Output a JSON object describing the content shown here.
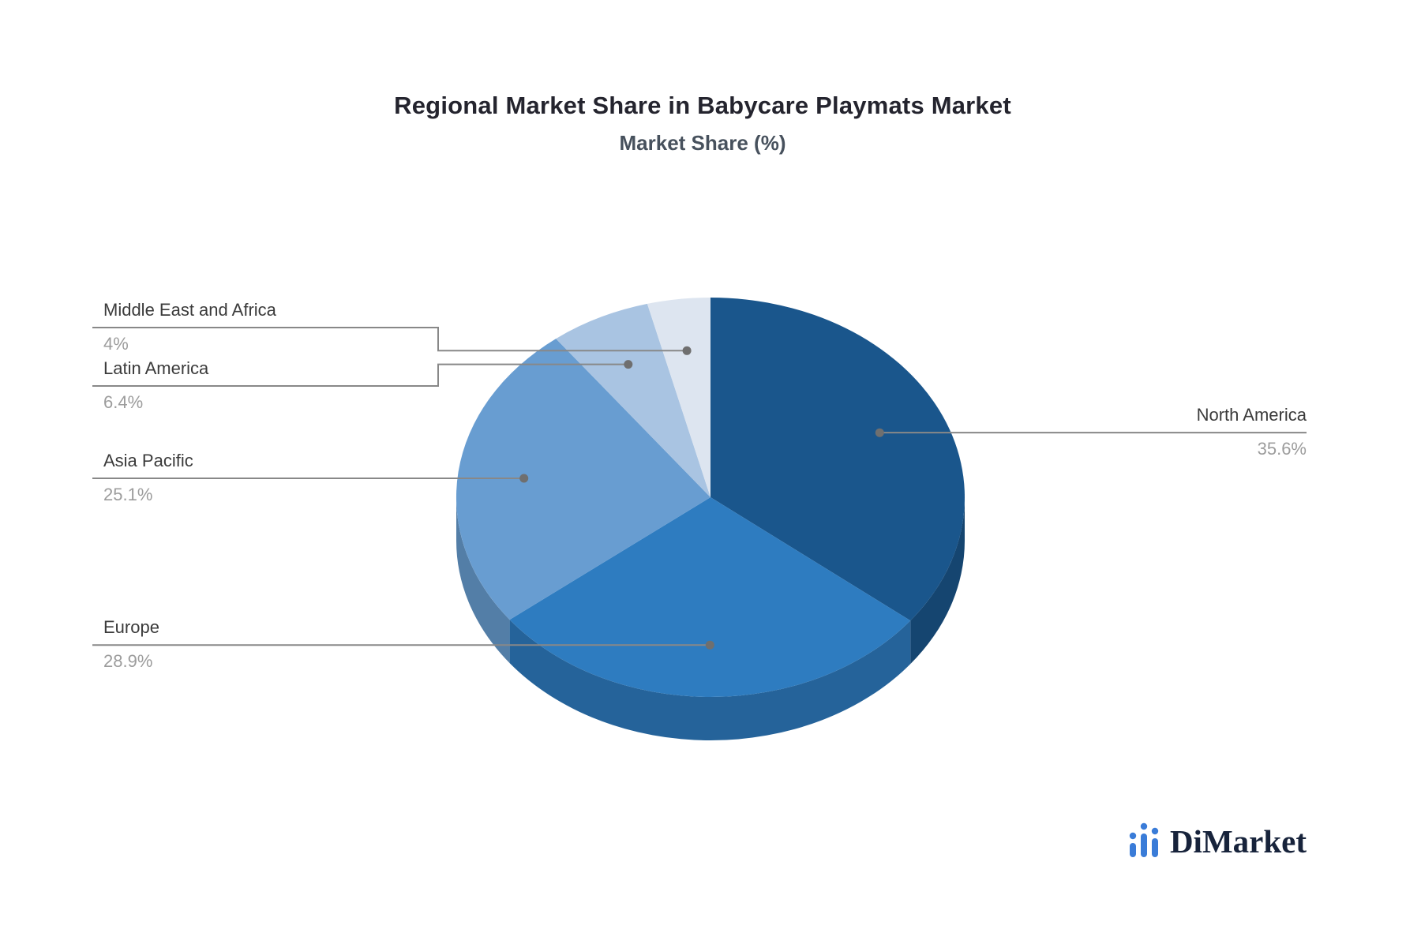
{
  "header": {
    "title": "Regional Market Share in Babycare Playmats Market",
    "subtitle": "Market Share (%)"
  },
  "chart_data": {
    "type": "pie",
    "title": "Regional Market Share in Babycare Playmats Market",
    "subtitle": "Market Share (%)",
    "units": "%",
    "labels": [
      "North America",
      "Europe",
      "Asia Pacific",
      "Latin America",
      "Middle East and Africa"
    ],
    "values": [
      35.6,
      28.9,
      25.1,
      6.4,
      4
    ],
    "value_labels": [
      "35.6%",
      "28.9%",
      "25.1%",
      "6.4%",
      "4%"
    ],
    "colors": [
      "#1a568c",
      "#2e7cc0",
      "#689dd1",
      "#a9c4e2",
      "#dde5f0"
    ],
    "start_angle": "12-o-clock",
    "direction": "clockwise",
    "style": "3d-pie",
    "legend": "none",
    "leader_line_color": "#888888",
    "leader_dot_color": "#6f6f6f",
    "label_text_color": "#3b3b3b",
    "value_text_color": "#9c9c9c"
  },
  "branding": {
    "logo_text": "DiMarket",
    "logo_icon": "bar-chart-icon",
    "logo_text_color": "#17233b",
    "logo_icon_color": "#3a7cd8"
  }
}
